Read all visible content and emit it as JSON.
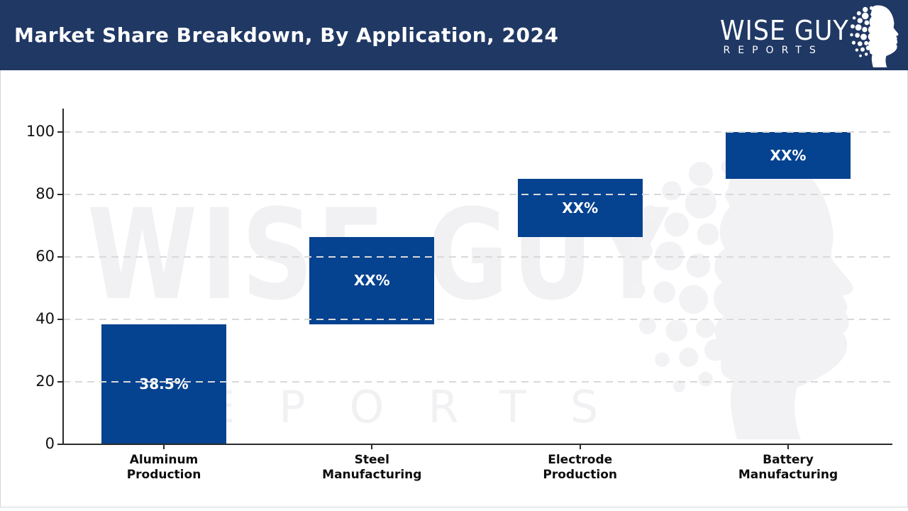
{
  "header": {
    "title": "Market Share Breakdown, By Application, 2024",
    "bg_color": "#203864",
    "logo": {
      "line1": "WISE GUY",
      "line2": "REPORTS"
    }
  },
  "watermark": {
    "line1": "WISE GUY",
    "line2": "REPORTS"
  },
  "chart_data": {
    "type": "bar",
    "subtype": "waterfall",
    "title": "Market Share Breakdown, By Application, 2024",
    "categories": [
      "Aluminum\nProduction",
      "Steel\nManufacturing",
      "Electrode\nProduction",
      "Battery\nManufacturing"
    ],
    "bars": [
      {
        "category": "Aluminum\nProduction",
        "start": 0,
        "end": 38.5,
        "value": 38.5,
        "label": "38.5%"
      },
      {
        "category": "Steel\nManufacturing",
        "start": 38.5,
        "end": 66.3,
        "value": 27.8,
        "label": "XX%"
      },
      {
        "category": "Electrode\nProduction",
        "start": 66.3,
        "end": 84.9,
        "value": 18.6,
        "label": "XX%"
      },
      {
        "category": "Battery\nManufacturing",
        "start": 84.9,
        "end": 100,
        "value": 15.1,
        "label": "XX%"
      }
    ],
    "ylim": [
      0,
      107
    ],
    "yticks": [
      0,
      20,
      40,
      60,
      80,
      100
    ],
    "bar_color": "#05428f",
    "grid": "dashed-horizontal",
    "legend": "none"
  }
}
